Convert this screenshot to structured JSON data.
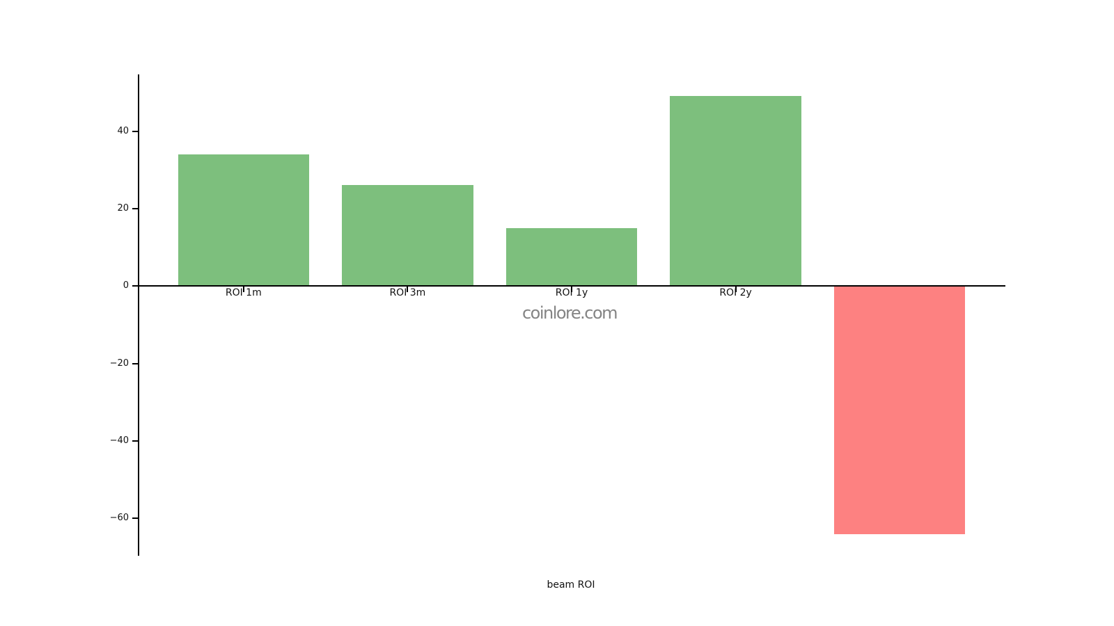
{
  "page": {
    "background": "#ffffff"
  },
  "watermark": {
    "text": "coinlore.com",
    "color": "#848484"
  },
  "chart_data": {
    "type": "bar",
    "title": "",
    "xlabel": "beam ROI",
    "ylabel": "",
    "categories": [
      "ROI 1m",
      "ROI 3m",
      "ROI 1y",
      "ROI 2y",
      ""
    ],
    "values": [
      34,
      26,
      15,
      49,
      -64
    ],
    "positive_color": "#7dbf7d",
    "negative_color": "#fd8181",
    "axis_color": "#000000",
    "text_color": "#111111",
    "yticks": [
      40,
      20,
      0,
      -20,
      -40,
      -60
    ],
    "ylim": [
      -69.65,
      54.65
    ],
    "xlim": [
      -0.64,
      4.64
    ],
    "bar_slot_fraction": 0.8,
    "grid": false,
    "legend": null
  }
}
